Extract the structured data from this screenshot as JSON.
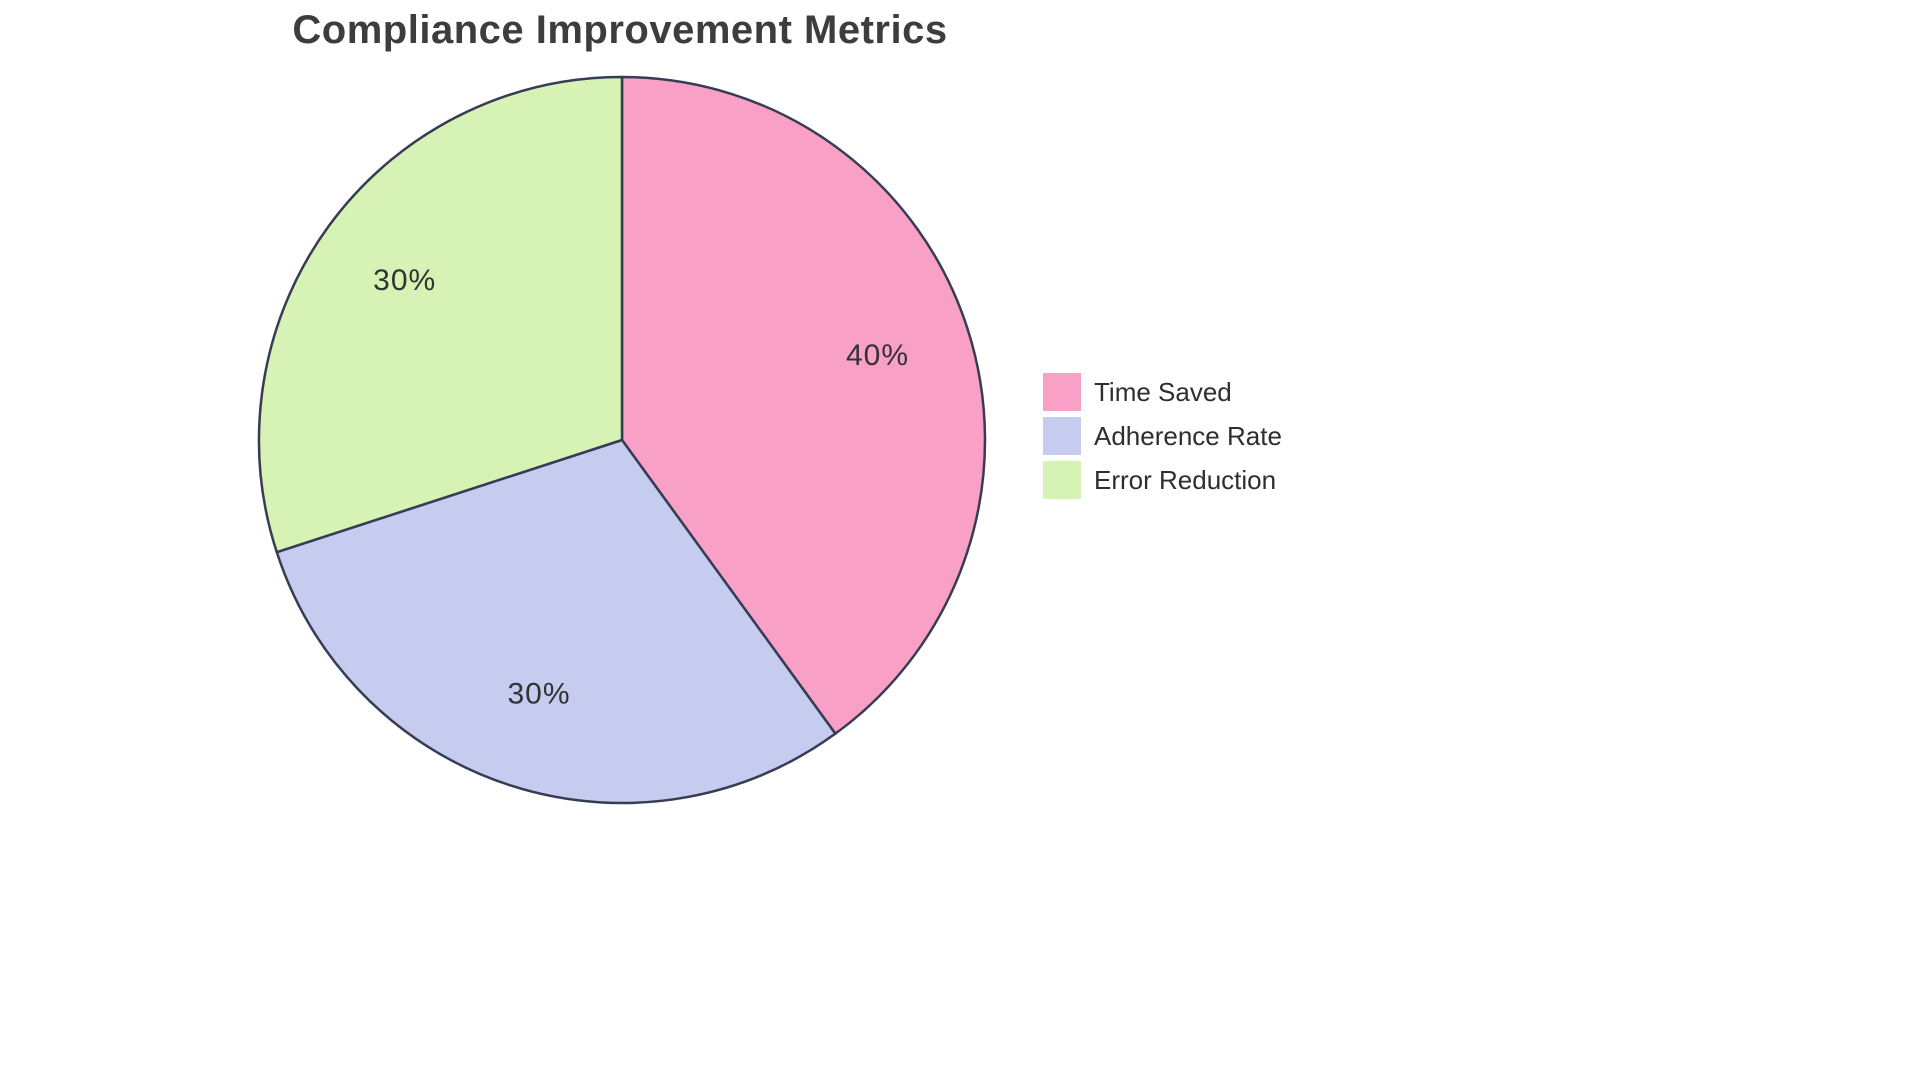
{
  "chart_data": {
    "type": "pie",
    "title": "Compliance Improvement Metrics",
    "labels": [
      "Time Saved",
      "Adherence Rate",
      "Error Reduction"
    ],
    "values": [
      40,
      30,
      30
    ],
    "percent_labels": [
      "40%",
      "30%",
      "30%"
    ],
    "colors": [
      "#F9A0C6",
      "#C6CBF0",
      "#D7F2B5"
    ],
    "stroke_color": "#363C54",
    "label_color": "#333333",
    "background_color": "#FFFFFF",
    "legend_position": "right",
    "start_angle_deg": 0,
    "direction": "clockwise"
  }
}
